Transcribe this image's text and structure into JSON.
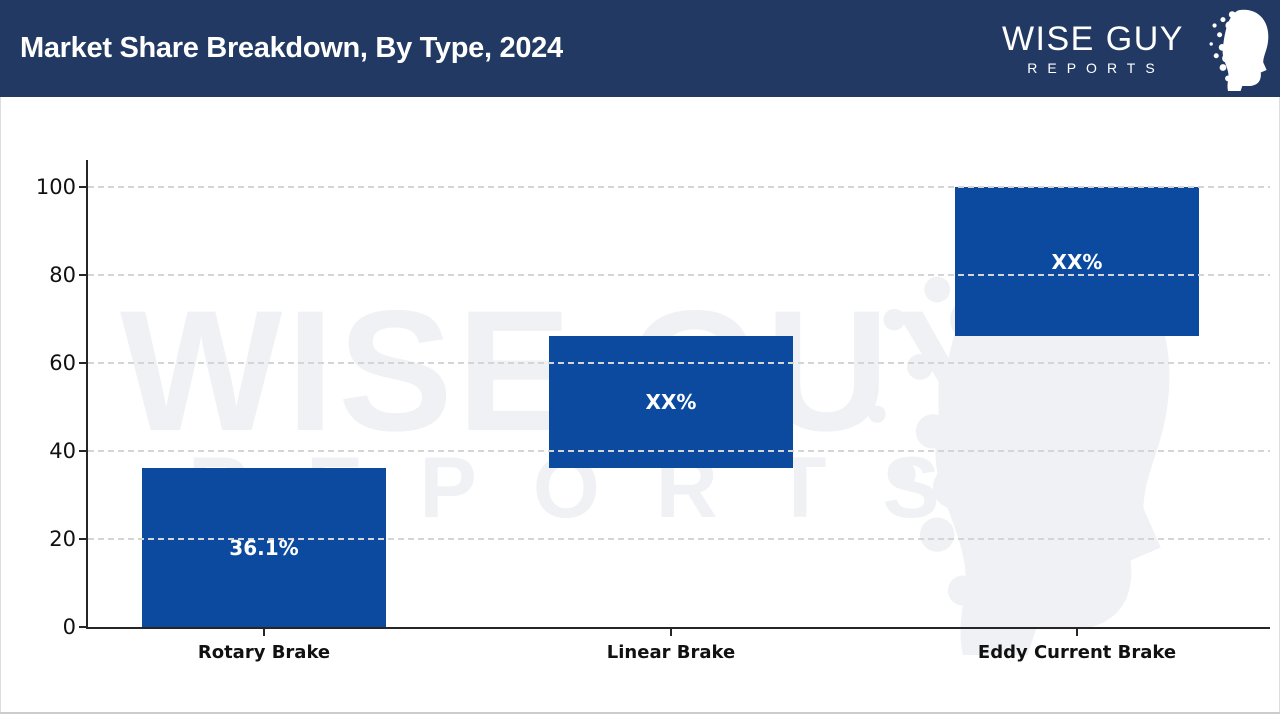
{
  "header": {
    "title": "Market Share Breakdown, By Type, 2024",
    "logo": {
      "brand": "WISE GUY",
      "sub": "REPORTS"
    }
  },
  "watermark": {
    "brand": "WISE GUY",
    "sub": "REPORTS"
  },
  "chart_data": {
    "type": "bar",
    "variant": "floating-waterfall",
    "title": "Market Share Breakdown, By Type, 2024",
    "categories": [
      "Rotary Brake",
      "Linear Brake",
      "Eddy Current Brake"
    ],
    "bars": [
      {
        "category": "Rotary Brake",
        "base": 0,
        "top": 36.1,
        "label": "36.1%"
      },
      {
        "category": "Linear Brake",
        "base": 36.1,
        "top": 66.1,
        "label": "XX%"
      },
      {
        "category": "Eddy Current Brake",
        "base": 66.1,
        "top": 100,
        "label": "XX%"
      }
    ],
    "xlabel": "",
    "ylabel": "",
    "ylim": [
      0,
      100
    ],
    "yticks": [
      0,
      20,
      40,
      60,
      80,
      100
    ],
    "grid": {
      "axis": "y",
      "style": "dashed",
      "drawn_over_bars": true
    },
    "legend": null,
    "colors": {
      "bar": "#0b4a9e",
      "bar_label": "#ffffff",
      "grid": "#d5d5d5",
      "axis": "#262626",
      "tick_label": "#111111",
      "header_bg": "#223a63",
      "header_text": "#ffffff",
      "watermark": "#f0f1f4"
    }
  }
}
